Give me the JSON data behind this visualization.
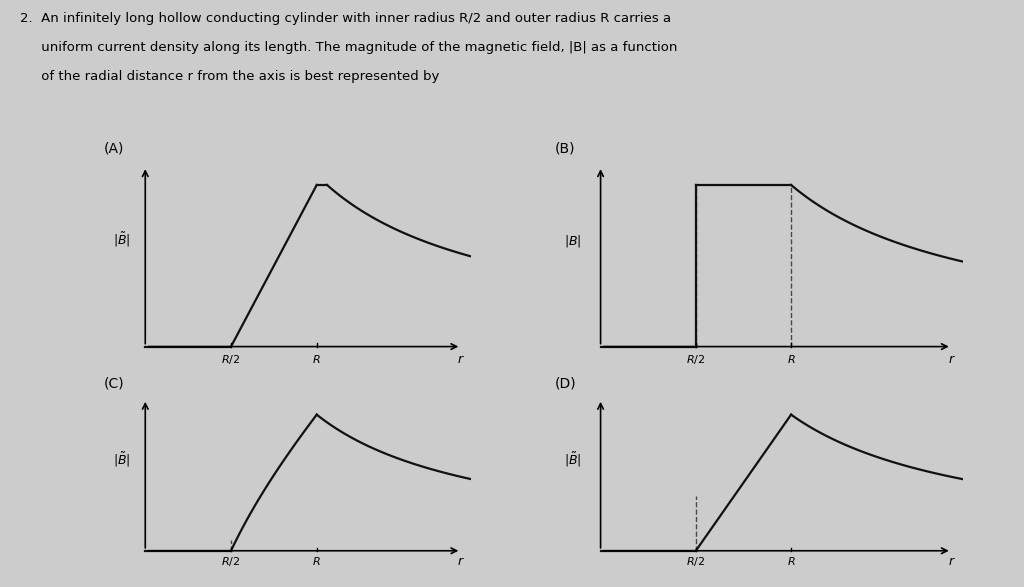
{
  "bg_color": "#cccccc",
  "line_color": "#111111",
  "text_color": "#111111",
  "title_line1": "2.  An infinitely long hollow conducting cylinder with inner radius R/2 and outer radius R carries a",
  "title_line2": "     uniform current density along its length. The magnitude of the magnetic field, |B| as a function",
  "title_line3": "     of the radial distance r from the axis is best represented by",
  "R_half": 1.0,
  "R": 2.0,
  "x_max": 3.8,
  "y_max": 1.15,
  "lw": 1.6
}
